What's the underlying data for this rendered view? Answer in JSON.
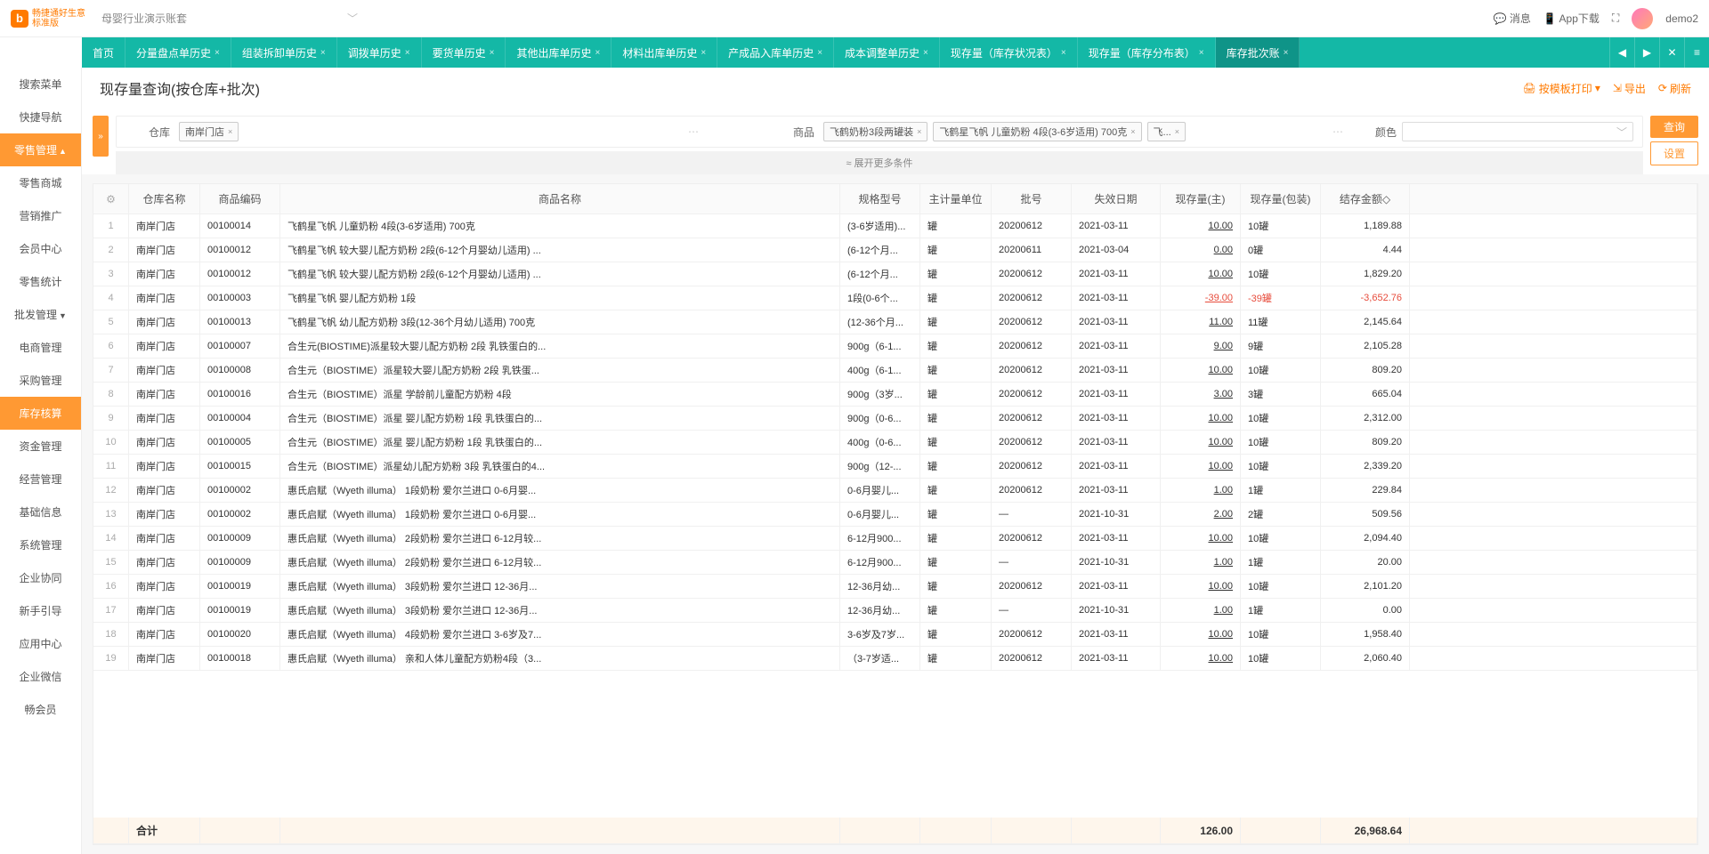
{
  "topbar": {
    "logo_letter": "b",
    "logo_line1": "畅捷通好生意",
    "logo_line2": "标准版",
    "account": "母婴行业演示账套",
    "msg": "消息",
    "download": "App下载",
    "user": "demo2"
  },
  "tabs": [
    {
      "label": "首页",
      "closable": false
    },
    {
      "label": "分量盘点单历史",
      "closable": true
    },
    {
      "label": "组装拆卸单历史",
      "closable": true
    },
    {
      "label": "调拨单历史",
      "closable": true
    },
    {
      "label": "要货单历史",
      "closable": true
    },
    {
      "label": "其他出库单历史",
      "closable": true
    },
    {
      "label": "材料出库单历史",
      "closable": true
    },
    {
      "label": "产成品入库单历史",
      "closable": true
    },
    {
      "label": "成本调整单历史",
      "closable": true
    },
    {
      "label": "现存量（库存状况表）",
      "closable": true
    },
    {
      "label": "现存量（库存分布表）",
      "closable": true
    },
    {
      "label": "库存批次账",
      "closable": true,
      "active": true
    }
  ],
  "sidebar": [
    {
      "label": "搜索菜单"
    },
    {
      "label": "快捷导航"
    },
    {
      "label": "零售管理",
      "active": true,
      "caret": "▲"
    },
    {
      "label": "零售商城",
      "sub": true
    },
    {
      "label": "营销推广",
      "sub": true
    },
    {
      "label": "会员中心",
      "sub": true
    },
    {
      "label": "零售统计",
      "sub": true
    },
    {
      "label": "批发管理",
      "caret": "▼"
    },
    {
      "label": "电商管理"
    },
    {
      "label": "采购管理"
    },
    {
      "label": "库存核算",
      "highlight": true
    },
    {
      "label": "资金管理"
    },
    {
      "label": "经营管理"
    },
    {
      "label": "基础信息"
    },
    {
      "label": "系统管理"
    },
    {
      "label": "企业协同"
    },
    {
      "label": "新手引导"
    },
    {
      "label": "应用中心"
    },
    {
      "label": "企业微信"
    },
    {
      "label": "畅会员"
    }
  ],
  "page": {
    "title": "现存量查询(按仓库+批次)",
    "print": "按模板打印",
    "export": "导出",
    "refresh": "刷新"
  },
  "filters": {
    "warehouse_label": "仓库",
    "warehouse_tags": [
      "南岸门店"
    ],
    "product_label": "商品",
    "product_tags": [
      "飞鹤奶粉3段两罐装",
      "飞鹤星飞帆 儿童奶粉 4段(3-6岁适用) 700克",
      "飞..."
    ],
    "color_label": "颜色",
    "expand": "展开更多条件",
    "query": "查询",
    "settings": "设置"
  },
  "columns": {
    "warehouse": "仓库名称",
    "code": "商品编码",
    "name": "商品名称",
    "spec": "规格型号",
    "unit": "主计量单位",
    "batch": "批号",
    "expire": "失效日期",
    "qty": "现存量(主)",
    "pkg": "现存量(包装)",
    "amt": "结存金额"
  },
  "rows": [
    {
      "idx": 1,
      "wh": "南岸门店",
      "code": "00100014",
      "name": "飞鹤星飞帆 儿童奶粉 4段(3-6岁适用) 700克",
      "spec": "(3-6岁适用)...",
      "unit": "罐",
      "batch": "20200612",
      "exp": "2021-03-11",
      "qty": "10.00",
      "pkg": "10罐",
      "amt": "1,189.88"
    },
    {
      "idx": 2,
      "wh": "南岸门店",
      "code": "00100012",
      "name": "飞鹤星飞帆 较大婴儿配方奶粉 2段(6-12个月婴幼儿适用) ...",
      "spec": "(6-12个月...",
      "unit": "罐",
      "batch": "20200611",
      "exp": "2021-03-04",
      "qty": "0.00",
      "pkg": "0罐",
      "amt": "4.44"
    },
    {
      "idx": 3,
      "wh": "南岸门店",
      "code": "00100012",
      "name": "飞鹤星飞帆 较大婴儿配方奶粉 2段(6-12个月婴幼儿适用) ...",
      "spec": "(6-12个月...",
      "unit": "罐",
      "batch": "20200612",
      "exp": "2021-03-11",
      "qty": "10.00",
      "pkg": "10罐",
      "amt": "1,829.20"
    },
    {
      "idx": 4,
      "wh": "南岸门店",
      "code": "00100003",
      "name": "飞鹤星飞帆 婴儿配方奶粉 1段",
      "spec": "1段(0-6个...",
      "unit": "罐",
      "batch": "20200612",
      "exp": "2021-03-11",
      "qty": "-39.00",
      "pkg": "-39罐",
      "amt": "-3,652.76",
      "neg": true
    },
    {
      "idx": 5,
      "wh": "南岸门店",
      "code": "00100013",
      "name": "飞鹤星飞帆 幼儿配方奶粉 3段(12-36个月幼儿适用) 700克",
      "spec": "(12-36个月...",
      "unit": "罐",
      "batch": "20200612",
      "exp": "2021-03-11",
      "qty": "11.00",
      "pkg": "11罐",
      "amt": "2,145.64"
    },
    {
      "idx": 6,
      "wh": "南岸门店",
      "code": "00100007",
      "name": "合生元(BIOSTIME)派星较大婴儿配方奶粉 2段 乳铁蛋白的...",
      "spec": "900g（6-1...",
      "unit": "罐",
      "batch": "20200612",
      "exp": "2021-03-11",
      "qty": "9.00",
      "pkg": "9罐",
      "amt": "2,105.28"
    },
    {
      "idx": 7,
      "wh": "南岸门店",
      "code": "00100008",
      "name": "合生元（BIOSTIME）派星较大婴儿配方奶粉 2段 乳铁蛋...",
      "spec": "400g（6-1...",
      "unit": "罐",
      "batch": "20200612",
      "exp": "2021-03-11",
      "qty": "10.00",
      "pkg": "10罐",
      "amt": "809.20"
    },
    {
      "idx": 8,
      "wh": "南岸门店",
      "code": "00100016",
      "name": "合生元（BIOSTIME）派星 学龄前儿童配方奶粉 4段",
      "spec": "900g（3岁...",
      "unit": "罐",
      "batch": "20200612",
      "exp": "2021-03-11",
      "qty": "3.00",
      "pkg": "3罐",
      "amt": "665.04"
    },
    {
      "idx": 9,
      "wh": "南岸门店",
      "code": "00100004",
      "name": "合生元（BIOSTIME）派星 婴儿配方奶粉 1段 乳铁蛋白的...",
      "spec": "900g（0-6...",
      "unit": "罐",
      "batch": "20200612",
      "exp": "2021-03-11",
      "qty": "10.00",
      "pkg": "10罐",
      "amt": "2,312.00"
    },
    {
      "idx": 10,
      "wh": "南岸门店",
      "code": "00100005",
      "name": "合生元（BIOSTIME）派星 婴儿配方奶粉 1段 乳铁蛋白的...",
      "spec": "400g（0-6...",
      "unit": "罐",
      "batch": "20200612",
      "exp": "2021-03-11",
      "qty": "10.00",
      "pkg": "10罐",
      "amt": "809.20"
    },
    {
      "idx": 11,
      "wh": "南岸门店",
      "code": "00100015",
      "name": "合生元（BIOSTIME）派星幼儿配方奶粉 3段 乳铁蛋白的4...",
      "spec": "900g（12-...",
      "unit": "罐",
      "batch": "20200612",
      "exp": "2021-03-11",
      "qty": "10.00",
      "pkg": "10罐",
      "amt": "2,339.20"
    },
    {
      "idx": 12,
      "wh": "南岸门店",
      "code": "00100002",
      "name": "惠氏启赋（Wyeth illuma） 1段奶粉 爱尔兰进口 0-6月婴...",
      "spec": "0-6月婴儿...",
      "unit": "罐",
      "batch": "20200612",
      "exp": "2021-03-11",
      "qty": "1.00",
      "pkg": "1罐",
      "amt": "229.84"
    },
    {
      "idx": 13,
      "wh": "南岸门店",
      "code": "00100002",
      "name": "惠氏启赋（Wyeth illuma） 1段奶粉 爱尔兰进口 0-6月婴...",
      "spec": "0-6月婴儿...",
      "unit": "罐",
      "batch": "—",
      "exp": "2021-10-31",
      "qty": "2.00",
      "pkg": "2罐",
      "amt": "509.56"
    },
    {
      "idx": 14,
      "wh": "南岸门店",
      "code": "00100009",
      "name": "惠氏启赋（Wyeth illuma） 2段奶粉 爱尔兰进口 6-12月较...",
      "spec": "6-12月900...",
      "unit": "罐",
      "batch": "20200612",
      "exp": "2021-03-11",
      "qty": "10.00",
      "pkg": "10罐",
      "amt": "2,094.40"
    },
    {
      "idx": 15,
      "wh": "南岸门店",
      "code": "00100009",
      "name": "惠氏启赋（Wyeth illuma） 2段奶粉 爱尔兰进口 6-12月较...",
      "spec": "6-12月900...",
      "unit": "罐",
      "batch": "—",
      "exp": "2021-10-31",
      "qty": "1.00",
      "pkg": "1罐",
      "amt": "20.00"
    },
    {
      "idx": 16,
      "wh": "南岸门店",
      "code": "00100019",
      "name": "惠氏启赋（Wyeth illuma） 3段奶粉 爱尔兰进口 12-36月...",
      "spec": "12-36月幼...",
      "unit": "罐",
      "batch": "20200612",
      "exp": "2021-03-11",
      "qty": "10.00",
      "pkg": "10罐",
      "amt": "2,101.20"
    },
    {
      "idx": 17,
      "wh": "南岸门店",
      "code": "00100019",
      "name": "惠氏启赋（Wyeth illuma） 3段奶粉 爱尔兰进口 12-36月...",
      "spec": "12-36月幼...",
      "unit": "罐",
      "batch": "—",
      "exp": "2021-10-31",
      "qty": "1.00",
      "pkg": "1罐",
      "amt": "0.00"
    },
    {
      "idx": 18,
      "wh": "南岸门店",
      "code": "00100020",
      "name": "惠氏启赋（Wyeth illuma） 4段奶粉 爱尔兰进口 3-6岁及7...",
      "spec": "3-6岁及7岁...",
      "unit": "罐",
      "batch": "20200612",
      "exp": "2021-03-11",
      "qty": "10.00",
      "pkg": "10罐",
      "amt": "1,958.40"
    },
    {
      "idx": 19,
      "wh": "南岸门店",
      "code": "00100018",
      "name": "惠氏启赋（Wyeth illuma） 亲和人体儿童配方奶粉4段（3...",
      "spec": "（3-7岁适...",
      "unit": "罐",
      "batch": "20200612",
      "exp": "2021-03-11",
      "qty": "10.00",
      "pkg": "10罐",
      "amt": "2,060.40"
    }
  ],
  "footer": {
    "label": "合计",
    "qty": "126.00",
    "amt": "26,968.64"
  }
}
